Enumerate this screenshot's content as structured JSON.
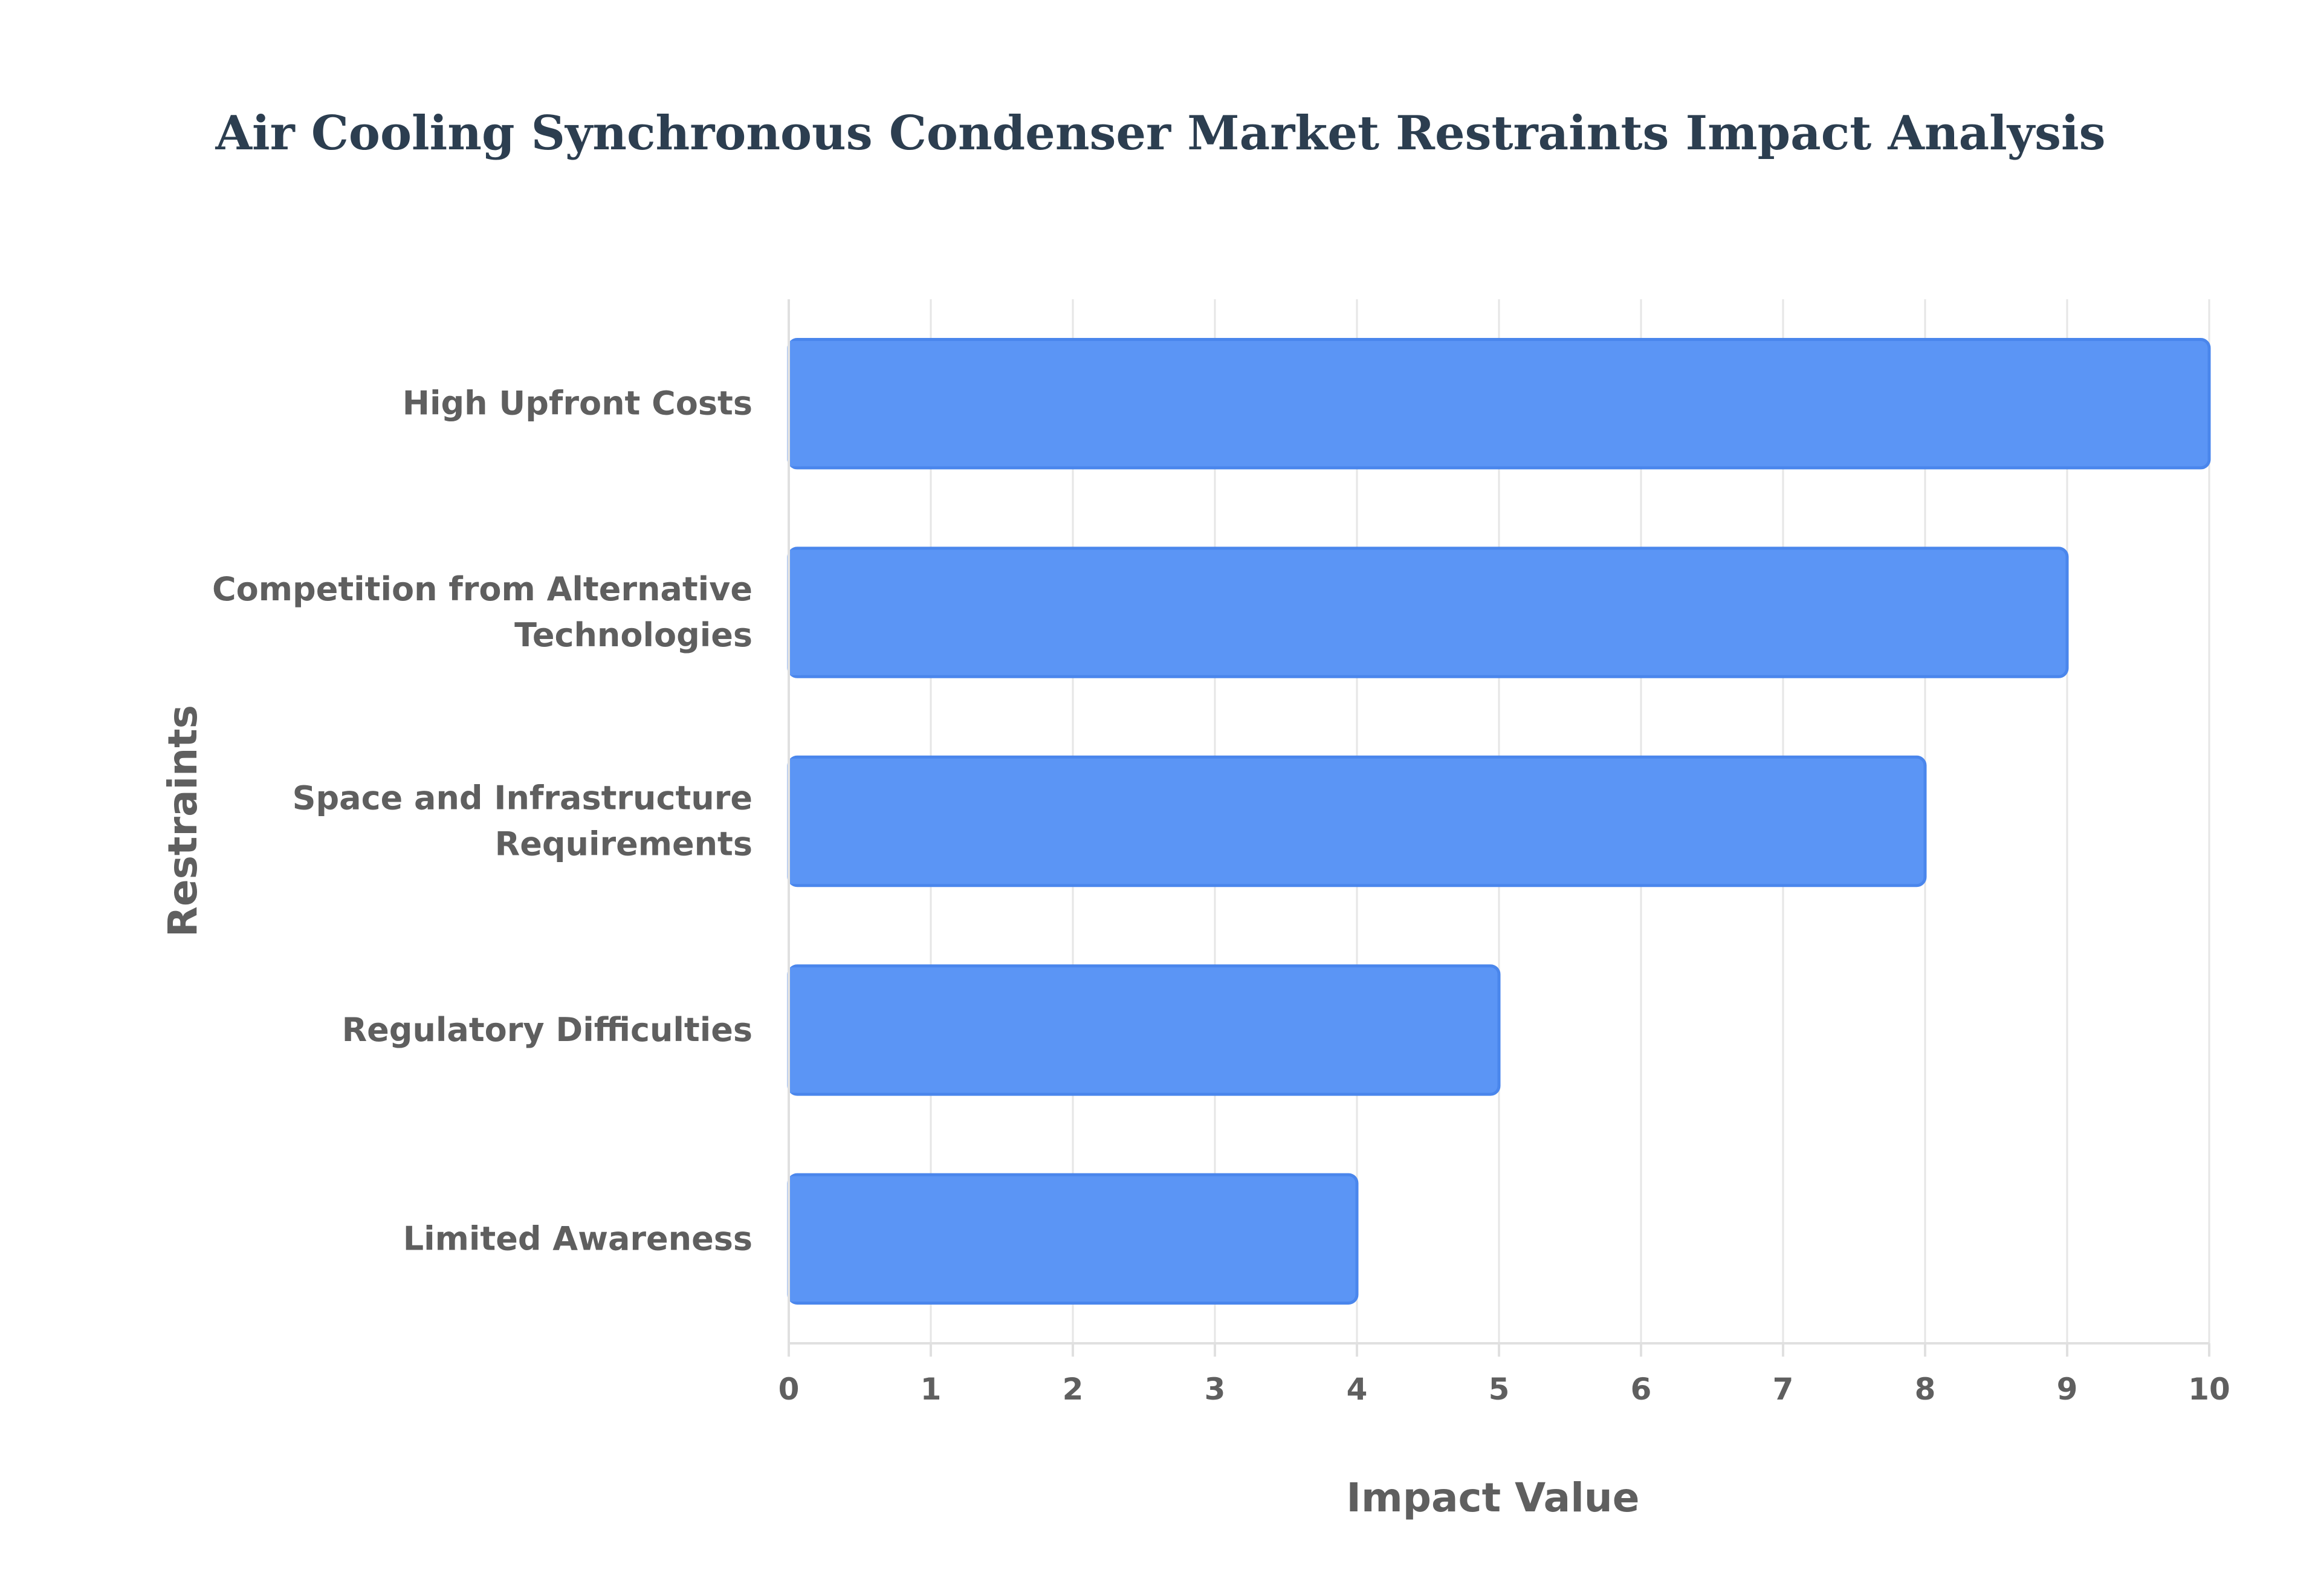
{
  "chart_data": {
    "type": "bar",
    "orientation": "horizontal",
    "title": "Air Cooling Synchronous Condenser Market Restraints Impact Analysis",
    "categories": [
      [
        "High Upfront Costs"
      ],
      [
        "Competition from Alternative",
        "Technologies"
      ],
      [
        "Space and Infrastructure",
        "Requirements"
      ],
      [
        "Regulatory Difficulties"
      ],
      [
        "Limited Awareness"
      ]
    ],
    "values": [
      10,
      9,
      8,
      5,
      4
    ],
    "xlabel": "Impact Value",
    "ylabel": "Restraints",
    "xlim": [
      0,
      10
    ],
    "xticks": [
      "0",
      "1",
      "2",
      "3",
      "4",
      "5",
      "6",
      "7",
      "8",
      "9",
      "10"
    ],
    "grid": true,
    "legend": "none",
    "colors": {
      "bar_fill": "#5b95f5",
      "bar_stroke": "#4a86ec",
      "title": "#2c3e50",
      "text": "#5f5f5f",
      "grid": "#e6e6e6"
    }
  }
}
